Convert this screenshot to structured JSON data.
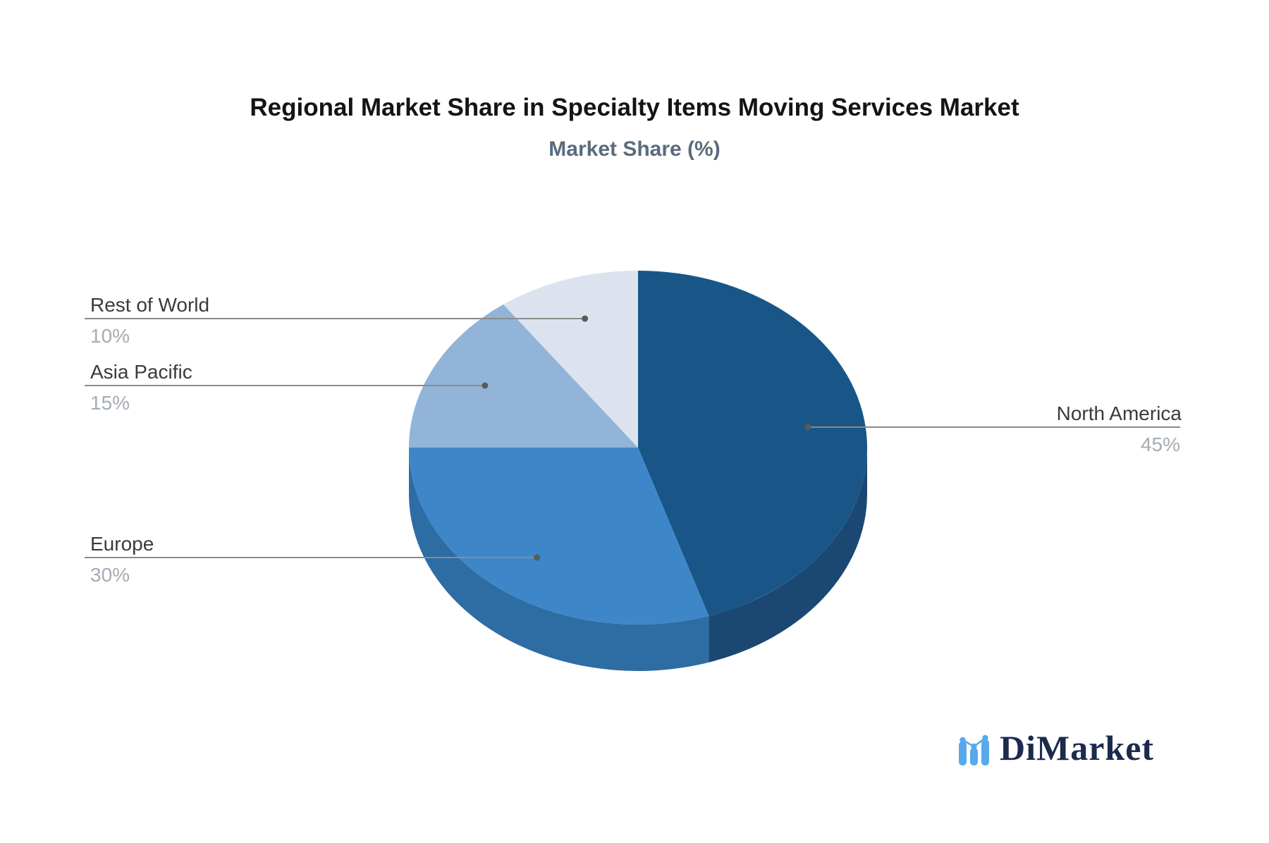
{
  "title": "Regional Market Share in Specialty Items Moving Services Market",
  "subtitle": "Market Share (%)",
  "chart_data": {
    "type": "pie",
    "style": "3d",
    "unit": "%",
    "start_angle_deg": 90,
    "direction": "clockwise",
    "series": [
      {
        "label": "North America",
        "value": 45,
        "display": "45%",
        "color": "#195687",
        "side_color": "#1b4872"
      },
      {
        "label": "Europe",
        "value": 30,
        "display": "30%",
        "color": "#3d87c9",
        "side_color": "#2e6ca4"
      },
      {
        "label": "Asia Pacific",
        "value": 15,
        "display": "15%",
        "color": "#91b4d8",
        "side_color": "#6d93bd"
      },
      {
        "label": "Rest of World",
        "value": 10,
        "display": "10%",
        "color": "#dde3ee",
        "side_color": "#b9c4d6"
      }
    ],
    "callout_line_color": "#8b8b8b",
    "callout_dot_color": "#5a5a5a",
    "label_color": "#3b3b3b",
    "value_color": "#a4acb4"
  },
  "branding": {
    "logo_text": "DiMarket",
    "logo_icon": "bar-chart-logo-icon",
    "logo_text_color": "#1b2b4d",
    "logo_icon_color": "#58a9ec"
  }
}
